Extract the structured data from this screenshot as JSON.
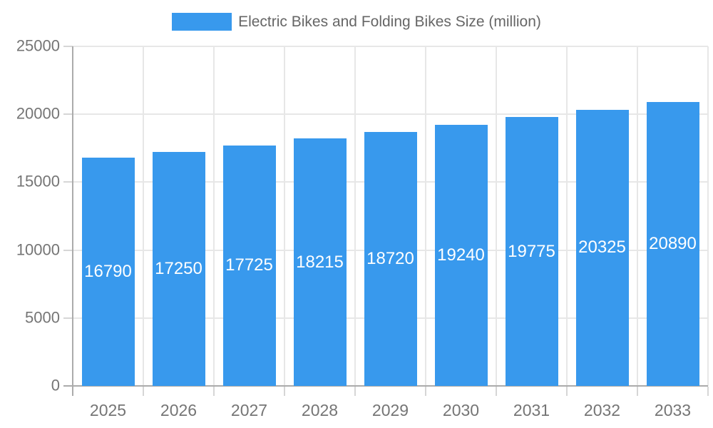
{
  "legend": {
    "label": "Electric Bikes and Folding Bikes Size (million)"
  },
  "colors": {
    "bar": "#3899ED",
    "grid": "#E7E7E7",
    "axis": "#ABABAB",
    "tick_mark": "#D6D6D6",
    "tick_text": "#757575",
    "legend_text": "#666666",
    "value_label": "#FFFFFF",
    "background": "#FFFFFF"
  },
  "chart_data": {
    "type": "bar",
    "title": "Electric Bikes and Folding Bikes Size (million)",
    "categories": [
      "2025",
      "2026",
      "2027",
      "2028",
      "2029",
      "2030",
      "2031",
      "2032",
      "2033"
    ],
    "values": [
      16790,
      17250,
      17725,
      18215,
      18720,
      19240,
      19775,
      20325,
      20890
    ],
    "xlabel": "",
    "ylabel": "",
    "ylim": [
      0,
      25000
    ],
    "yticks": [
      0,
      5000,
      10000,
      15000,
      20000,
      25000
    ],
    "grid": true,
    "legend_position": "top",
    "value_label_position": "inside-center"
  }
}
